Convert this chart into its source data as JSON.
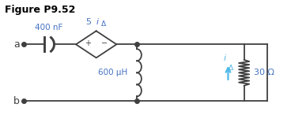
{
  "title": "Figure P9.52",
  "title_fontsize": 9,
  "title_fontweight": "bold",
  "title_color": "#000000",
  "bg_color": "#ffffff",
  "line_color": "#404040",
  "blue_color": "#4db8e8",
  "label_blue": "#d08020",
  "label_dark_blue": "#4472C4",
  "cap_label": "400 nF",
  "vcvs_label_num": "5 ",
  "vcvs_label_i": "i",
  "vcvs_label_delta": "Δ",
  "ind_label": "600 μH",
  "res_label": "30 Ω",
  "current_label_i": "i",
  "current_label_delta": "Δ",
  "terminal_a": "a",
  "terminal_b": "b",
  "figw": 3.68,
  "figh": 1.65,
  "dpi": 100
}
